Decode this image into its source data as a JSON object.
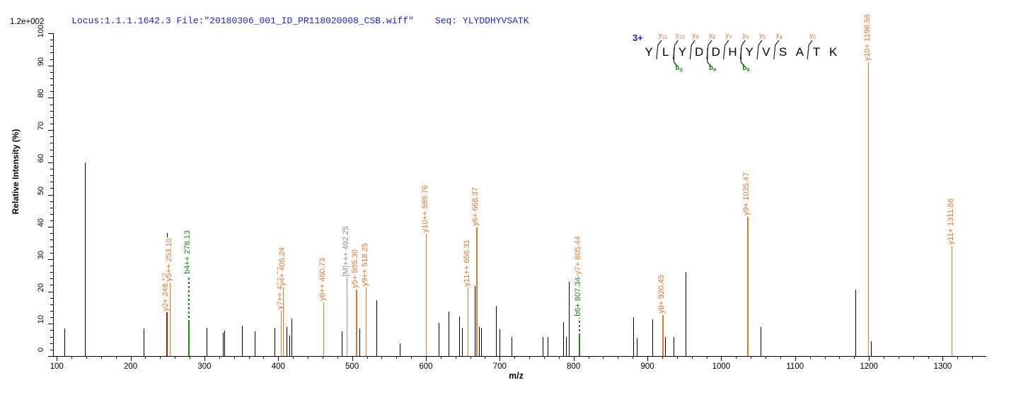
{
  "header": {
    "locus_file": "Locus:1.1.1.1642.3 File:\"20180306_001_ID_PR118020008_CSB.wiff\"",
    "seq": "Seq: YLYDDHYVSATK"
  },
  "intensity_scale": "1.2e+002",
  "axes": {
    "x": {
      "label": "m/z",
      "min": 95,
      "max": 1358,
      "major_ticks": [
        100,
        200,
        300,
        400,
        500,
        600,
        700,
        800,
        900,
        1000,
        1100,
        1200,
        1300
      ],
      "minor_step": 20
    },
    "y": {
      "label": "Relative  Intensity (%)",
      "min": 0,
      "max": 100,
      "major_ticks": [
        0,
        10,
        20,
        30,
        40,
        50,
        60,
        70,
        80,
        90,
        100
      ],
      "minor_step": 2
    }
  },
  "peptide": {
    "charge": "3+",
    "residues": [
      "Y",
      "L",
      "Y",
      "D",
      "D",
      "H",
      "Y",
      "V",
      "S",
      "A",
      "T",
      "K"
    ],
    "y_ions": [
      {
        "n": 11,
        "gap": 1
      },
      {
        "n": 10,
        "gap": 2
      },
      {
        "n": 9,
        "gap": 3
      },
      {
        "n": 8,
        "gap": 4
      },
      {
        "n": 7,
        "gap": 5
      },
      {
        "n": 6,
        "gap": 6
      },
      {
        "n": 5,
        "gap": 7
      },
      {
        "n": 4,
        "gap": 8
      },
      {
        "n": 2,
        "gap": 10
      }
    ],
    "b_ions": [
      {
        "n": 2,
        "gap": 2
      },
      {
        "n": 4,
        "gap": 4
      },
      {
        "n": 6,
        "gap": 6
      }
    ]
  },
  "colors": {
    "y_ion": "#e2772e",
    "b_ion": "#208420",
    "precursor": "#8c8c8c",
    "dark_peak": "#8b2318",
    "peak": "#000000",
    "header_text": "#2424bb"
  },
  "chart_data": {
    "type": "bar",
    "subtype": "mass-spectrum-stem",
    "xlabel": "m/z",
    "ylabel": "Relative  Intensity (%)",
    "xlim": [
      95,
      1358
    ],
    "ylim": [
      0,
      100
    ],
    "grid": false,
    "annotated_peaks": [
      {
        "ion": "y2+",
        "mz": 248.17,
        "label": "y2+ 248.17",
        "kind": "ydark",
        "line_top": 13.5
      },
      {
        "ion": "y5++",
        "mz": 253.1,
        "label": "y5++ 253.10",
        "kind": "y",
        "line_top": 22.8
      },
      {
        "ion": "b4++",
        "mz": 278.13,
        "label": "b4++ 278.13",
        "kind": "b",
        "line_top": 25.0,
        "solid": 10.5
      },
      {
        "ion": "y7++",
        "mz": 403.22,
        "label": "y7++ 403.22",
        "kind": "y",
        "line_top": 14.0
      },
      {
        "ion": "y4+",
        "mz": 406.24,
        "label": "y4+ 406.24",
        "kind": "y",
        "line_top": 21.2
      },
      {
        "ion": "y8++",
        "mz": 460.73,
        "label": "y8++ 460.73",
        "kind": "y",
        "line_top": 16.6
      },
      {
        "ion": "[M]+++",
        "mz": 492.25,
        "label": "[M]+++ 492.25",
        "kind": "M",
        "line_top": 24.3
      },
      {
        "ion": "y5+",
        "mz": 505.3,
        "label": "y5+ 505.30",
        "kind": "y",
        "line_top": 20.6
      },
      {
        "ion": "y9++",
        "mz": 518.25,
        "label": "y9++ 518.25",
        "kind": "y",
        "line_top": 21.2
      },
      {
        "ion": "y10++",
        "mz": 599.76,
        "label": "y10++ 599.76",
        "kind": "y",
        "line_top": 37.9
      },
      {
        "ion": "y11++",
        "mz": 656.31,
        "label": "y11++ 656.31",
        "kind": "y",
        "line_top": 21.2
      },
      {
        "ion": "y6+",
        "mz": 668.37,
        "label": "y6+ 668.37",
        "kind": "y",
        "line_top": 39.8
      },
      {
        "ion": "b6+",
        "mz": 807.34,
        "label": "b6+ 807.34-",
        "label2": "y7+ 805.44",
        "kind": "b",
        "line_top": 11.8,
        "solid": 6.3
      },
      {
        "ion": "y8+",
        "mz": 920.45,
        "label": "y8+ 920.45",
        "kind": "y",
        "line_top": 12.7
      },
      {
        "ion": "y9+",
        "mz": 1035.47,
        "label": "y9+ 1035.47",
        "kind": "y",
        "line_top": 43.1
      },
      {
        "ion": "y10+",
        "mz": 1198.56,
        "label": "y10+ 1198.56",
        "kind": "y",
        "line_top": 91.0
      },
      {
        "ion": "y11+",
        "mz": 1311.66,
        "label": "y11+ 1311.66",
        "kind": "y",
        "line_top": 34.1
      }
    ],
    "unlabeled_peaks": [
      [
        110,
        8.5
      ],
      [
        138,
        60.0
      ],
      [
        218,
        8.5
      ],
      [
        249,
        38.0
      ],
      [
        303,
        8.7
      ],
      [
        325,
        7.3
      ],
      [
        327,
        7.9
      ],
      [
        351,
        9.5
      ],
      [
        368,
        7.6
      ],
      [
        395,
        8.7
      ],
      [
        411,
        9.0
      ],
      [
        415,
        6.3
      ],
      [
        418,
        11.5
      ],
      [
        486,
        7.6
      ],
      [
        492.8,
        17.7
      ],
      [
        510,
        8.5
      ],
      [
        533,
        17.3
      ],
      [
        565,
        4.0
      ],
      [
        599.7,
        36.0
      ],
      [
        617,
        10.3
      ],
      [
        631,
        13.8
      ],
      [
        645,
        12.2
      ],
      [
        649,
        8.7
      ],
      [
        666,
        21.7
      ],
      [
        672,
        9.0
      ],
      [
        675,
        8.7
      ],
      [
        695,
        15.5
      ],
      [
        700,
        8.3
      ],
      [
        716,
        6.0
      ],
      [
        758,
        6.0
      ],
      [
        765,
        6.0
      ],
      [
        786,
        10.4
      ],
      [
        790,
        6.0
      ],
      [
        794,
        23.0
      ],
      [
        881,
        12.0
      ],
      [
        886,
        5.5
      ],
      [
        907,
        11.3
      ],
      [
        924,
        6.0
      ],
      [
        935,
        6.0
      ],
      [
        952,
        26.0
      ],
      [
        1053,
        9.0
      ],
      [
        1182,
        20.5
      ],
      [
        1203,
        4.5
      ]
    ]
  }
}
